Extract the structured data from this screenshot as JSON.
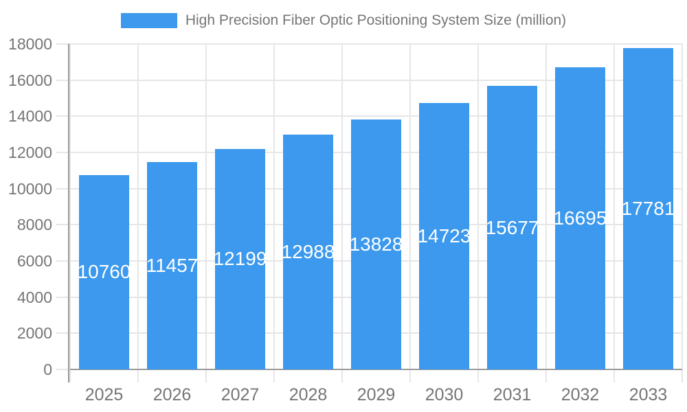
{
  "legend": {
    "label": "High Precision Fiber Optic Positioning System Size (million)"
  },
  "chart_data": {
    "type": "bar",
    "title": "High Precision Fiber Optic Positioning System Size (million)",
    "categories": [
      "2025",
      "2026",
      "2027",
      "2028",
      "2029",
      "2030",
      "2031",
      "2032",
      "2033"
    ],
    "values": [
      10760,
      11457,
      12199,
      12988,
      13828,
      14723,
      15677,
      16695,
      17781
    ],
    "xlabel": "",
    "ylabel": "",
    "ylim": [
      0,
      18000
    ],
    "yticks": [
      0,
      2000,
      4000,
      6000,
      8000,
      10000,
      12000,
      14000,
      16000,
      18000
    ],
    "grid": true,
    "legend_position": "top",
    "value_labels": "inside-center"
  },
  "colors": {
    "bar": "#3C99ED",
    "grid": "#e6e6e6",
    "axis": "#999999",
    "text": "#757575",
    "value_label": "#ffffff",
    "background": "#ffffff"
  }
}
